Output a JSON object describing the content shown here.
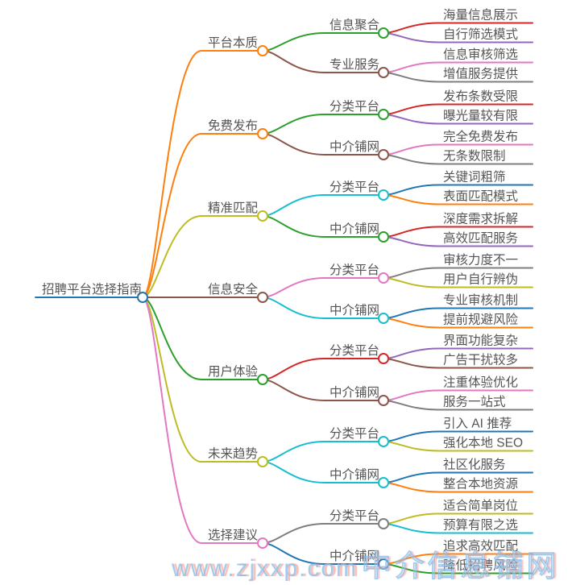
{
  "title": "招聘平台选择指南",
  "watermark": {
    "latin": "www.zjxxp.com",
    "cjk": "中介信息铺网"
  },
  "palette": {
    "blue": "#1f77b4",
    "orange": "#ff7f0e",
    "green": "#2ca02c",
    "red": "#d62728",
    "purple": "#9467bd",
    "brown": "#8c564b",
    "pink": "#e377c2",
    "gray": "#7f7f7f",
    "olive": "#bcbd22",
    "cyan": "#17becf",
    "text": "#555555",
    "node_fill": "#ffffff"
  },
  "mindmap": {
    "label": "招聘平台选择指南",
    "color": "#1f77b4",
    "children": [
      {
        "label": "平台本质",
        "color": "#ff7f0e",
        "children": [
          {
            "label": "信息聚合",
            "color": "#2ca02c",
            "children": [
              {
                "label": "海量信息展示",
                "color": "#d62728"
              },
              {
                "label": "自行筛选模式",
                "color": "#9467bd"
              }
            ]
          },
          {
            "label": "专业服务",
            "color": "#8c564b",
            "children": [
              {
                "label": "信息审核筛选",
                "color": "#e377c2"
              },
              {
                "label": "增值服务提供",
                "color": "#7f7f7f"
              }
            ]
          }
        ]
      },
      {
        "label": "免费发布",
        "color": "#ff7f0e",
        "children": [
          {
            "label": "分类平台",
            "color": "#2ca02c",
            "children": [
              {
                "label": "发布条数受限",
                "color": "#d62728"
              },
              {
                "label": "曝光量较有限",
                "color": "#9467bd"
              }
            ]
          },
          {
            "label": "中介铺网",
            "color": "#8c564b",
            "children": [
              {
                "label": "完全免费发布",
                "color": "#e377c2"
              },
              {
                "label": "无条数限制",
                "color": "#7f7f7f"
              }
            ]
          }
        ]
      },
      {
        "label": "精准匹配",
        "color": "#bcbd22",
        "children": [
          {
            "label": "分类平台",
            "color": "#17becf",
            "children": [
              {
                "label": "关键词粗筛",
                "color": "#1f77b4"
              },
              {
                "label": "表面匹配模式",
                "color": "#ff7f0e"
              }
            ]
          },
          {
            "label": "中介铺网",
            "color": "#2ca02c",
            "children": [
              {
                "label": "深度需求拆解",
                "color": "#d62728"
              },
              {
                "label": "高效匹配服务",
                "color": "#9467bd"
              }
            ]
          }
        ]
      },
      {
        "label": "信息安全",
        "color": "#8c564b",
        "children": [
          {
            "label": "分类平台",
            "color": "#e377c2",
            "children": [
              {
                "label": "审核力度不一",
                "color": "#7f7f7f"
              },
              {
                "label": "用户自行辨伪",
                "color": "#bcbd22"
              }
            ]
          },
          {
            "label": "中介铺网",
            "color": "#17becf",
            "children": [
              {
                "label": "专业审核机制",
                "color": "#1f77b4"
              },
              {
                "label": "提前规避风险",
                "color": "#ff7f0e"
              }
            ]
          }
        ]
      },
      {
        "label": "用户体验",
        "color": "#2ca02c",
        "children": [
          {
            "label": "分类平台",
            "color": "#d62728",
            "children": [
              {
                "label": "界面功能复杂",
                "color": "#9467bd"
              },
              {
                "label": "广告干扰较多",
                "color": "#8c564b"
              }
            ]
          },
          {
            "label": "中介铺网",
            "color": "#8c564b",
            "children": [
              {
                "label": "注重体验优化",
                "color": "#e377c2"
              },
              {
                "label": "服务一站式",
                "color": "#7f7f7f"
              }
            ]
          }
        ]
      },
      {
        "label": "未来趋势",
        "color": "#bcbd22",
        "children": [
          {
            "label": "分类平台",
            "color": "#17becf",
            "children": [
              {
                "label": "引入 AI 推荐",
                "color": "#1f77b4"
              },
              {
                "label": "强化本地 SEO",
                "color": "#bcbd22"
              }
            ]
          },
          {
            "label": "中介铺网",
            "color": "#17becf",
            "children": [
              {
                "label": "社区化服务",
                "color": "#1f77b4"
              },
              {
                "label": "整合本地资源",
                "color": "#ff7f0e"
              }
            ]
          }
        ]
      },
      {
        "label": "选择建议",
        "color": "#e377c2",
        "children": [
          {
            "label": "分类平台",
            "color": "#7f7f7f",
            "children": [
              {
                "label": "适合简单岗位",
                "color": "#bcbd22"
              },
              {
                "label": "预算有限之选",
                "color": "#17becf"
              }
            ]
          },
          {
            "label": "中介铺网",
            "color": "#1f77b4",
            "children": [
              {
                "label": "追求高效匹配",
                "color": "#ff7f0e"
              },
              {
                "label": "降低招聘风险",
                "color": "#2ca02c"
              }
            ]
          }
        ]
      }
    ]
  }
}
